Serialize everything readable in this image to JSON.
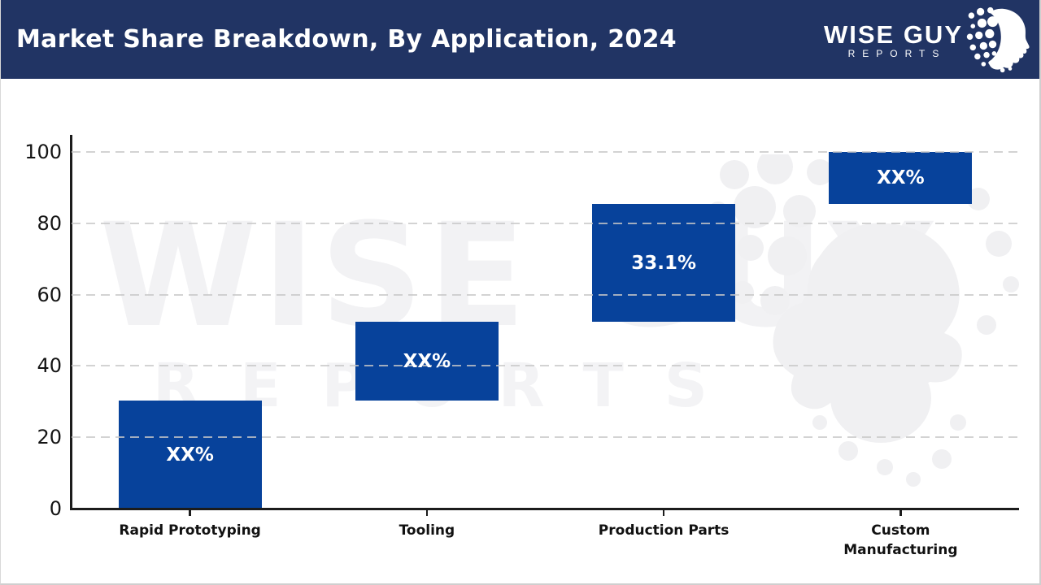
{
  "header": {
    "title": "Market Share Breakdown, By Application, 2024",
    "background_color": "#213464",
    "logo": {
      "line1": "WISE GUY",
      "line2": "REPORTS"
    }
  },
  "watermark": {
    "line1": "WISE GUY",
    "line2": "REPORTS"
  },
  "chart_data": {
    "type": "waterfall",
    "title": "Market Share Breakdown, By Application, 2024",
    "categories": [
      "Rapid Prototyping",
      "Tooling",
      "Production Parts",
      "Custom Manufacturing"
    ],
    "segments": [
      {
        "category": "Rapid Prototyping",
        "start": 0,
        "end": 30.2,
        "value_label": "XX%"
      },
      {
        "category": "Tooling",
        "start": 30.2,
        "end": 52.3,
        "value_label": "XX%"
      },
      {
        "category": "Production Parts",
        "start": 52.3,
        "end": 85.4,
        "value": 33.1,
        "value_label": "33.1%"
      },
      {
        "category": "Custom Manufacturing",
        "start": 85.4,
        "end": 100,
        "value_label": "XX%",
        "category_lines": [
          "Custom",
          "Manufacturing"
        ]
      }
    ],
    "y_ticks": [
      0,
      20,
      40,
      60,
      80,
      100
    ],
    "ylim": [
      0,
      105
    ],
    "grid": "horizontal-dashed",
    "legend": "none",
    "bar_color": "#07429B",
    "bar_label_color": "#ffffff",
    "axis_color": "#1c1c1c",
    "grid_color": "#d9d9d9"
  }
}
